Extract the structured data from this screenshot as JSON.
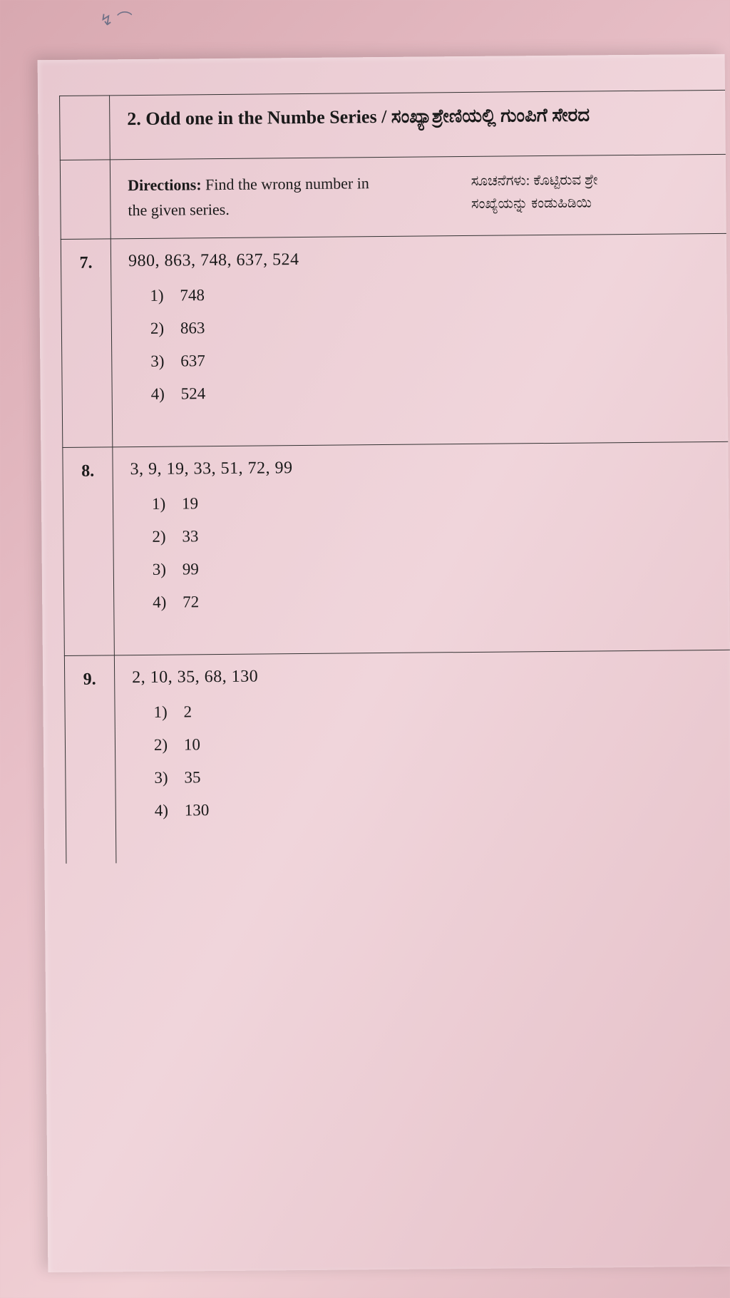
{
  "scribble": "↯ ⌒",
  "section": {
    "number": "2.",
    "title_en": "Odd one in the Numbe Series",
    "title_kn": "ಸಂಖ್ಯಾಶ್ರೇಣಿಯಲ್ಲಿ ಗುಂಪಿಗೆ ಸೇರದ"
  },
  "directions": {
    "label": "Directions:",
    "text_en_line1": "Find the wrong number in",
    "text_en_line2": "the given series.",
    "text_kn_line1": "ಸೂಚನೆಗಳು: ಕೊಟ್ಟಿರುವ ಶ್ರೇ",
    "text_kn_line2": "ಸಂಖ್ಯೆಯನ್ನು ಕಂಡುಹಿಡಿಯಿ"
  },
  "questions": [
    {
      "num": "7.",
      "series": "980, 863, 748, 637, 524",
      "options": [
        "748",
        "863",
        "637",
        "524"
      ]
    },
    {
      "num": "8.",
      "series": "3, 9, 19, 33, 51, 72, 99",
      "options": [
        "19",
        "33",
        "99",
        "72"
      ]
    },
    {
      "num": "9.",
      "series": "2, 10, 35, 68, 130",
      "options": [
        "2",
        "10",
        "35",
        "130"
      ]
    }
  ],
  "colors": {
    "text": "#1a1a1a",
    "border": "#333333",
    "paper_light": "#f0d5db",
    "paper_dark": "#e0b8c0"
  }
}
